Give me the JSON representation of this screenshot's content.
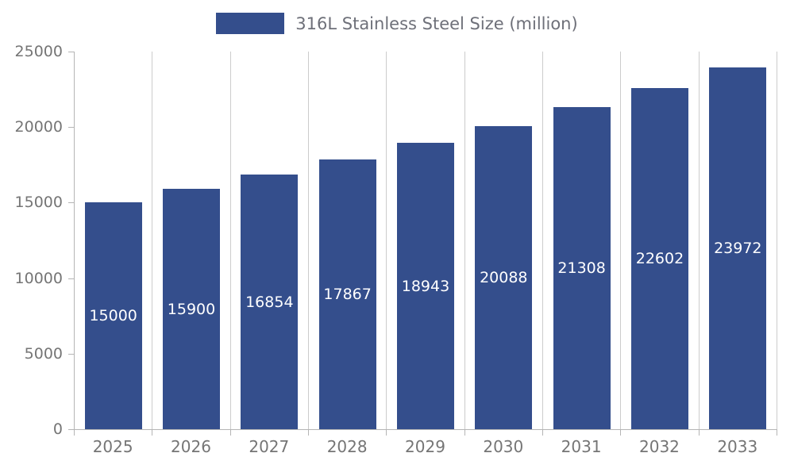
{
  "chart_data": {
    "type": "bar",
    "title": "",
    "legend": "316L Stainless Steel Size (million)",
    "categories": [
      "2025",
      "2026",
      "2027",
      "2028",
      "2029",
      "2030",
      "2031",
      "2032",
      "2033"
    ],
    "values": [
      15000,
      15900,
      16854,
      17867,
      18943,
      20088,
      21308,
      22602,
      23972
    ],
    "xlabel": "",
    "ylabel": "",
    "ylim": [
      0,
      25000
    ],
    "yticks": [
      0,
      5000,
      10000,
      15000,
      20000,
      25000
    ],
    "bar_color": "#344e8c",
    "value_label_color": "#ffffff",
    "axis_text_color": "#757575",
    "grid_color": "#cccccc",
    "grid": "vertical",
    "legend_position": "top-center",
    "value_label_position": "inside-center"
  }
}
